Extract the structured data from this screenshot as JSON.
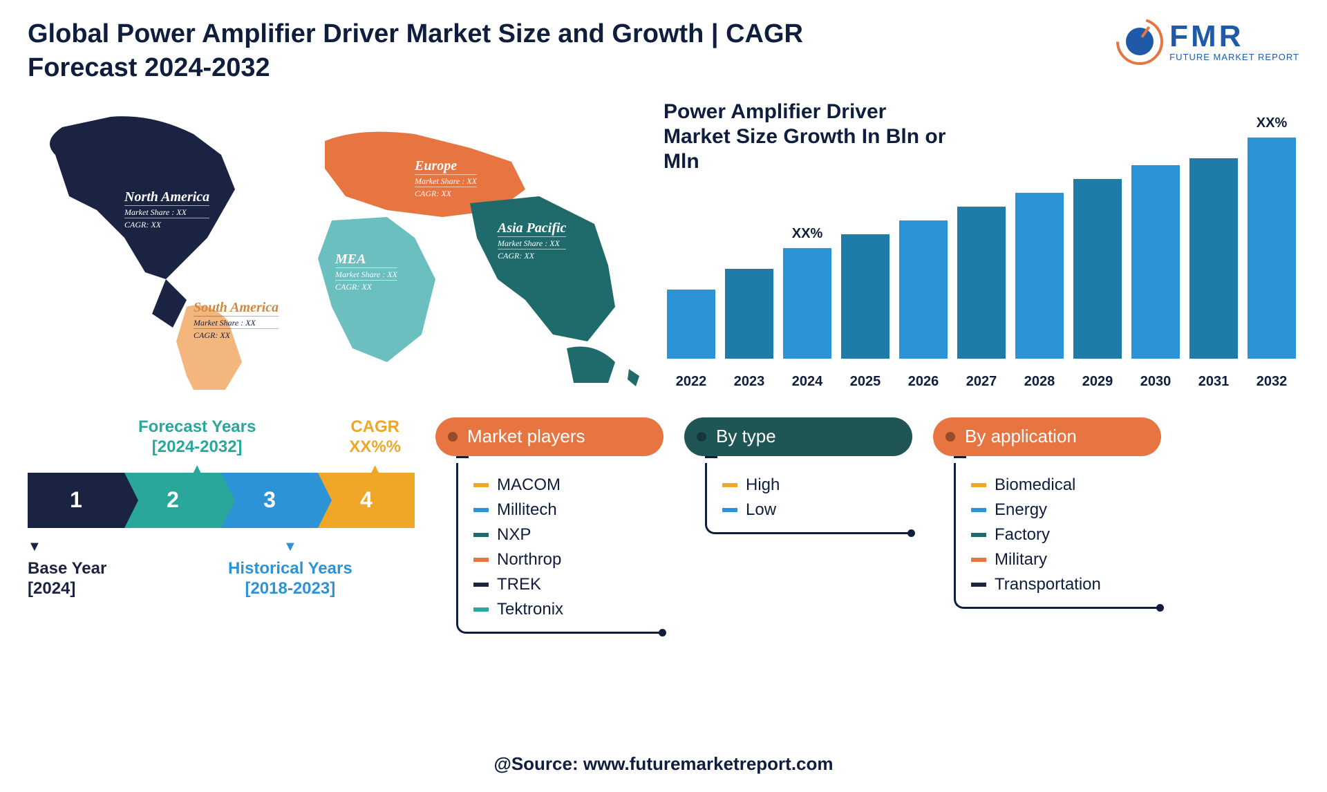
{
  "header": {
    "title": "Global Power Amplifier Driver Market Size and Growth | CAGR Forecast 2024-2032",
    "logo_text": "FMR",
    "logo_subtext": "FUTURE MARKET REPORT"
  },
  "map": {
    "regions": [
      {
        "name": "North America",
        "share": "Market Share : XX",
        "cagr": "CAGR: XX",
        "color": "#1a2442",
        "text": "light"
      },
      {
        "name": "South America",
        "share": "Market Share : XX",
        "cagr": "CAGR: XX",
        "color": "#f3b77e",
        "text": "dark"
      },
      {
        "name": "Europe",
        "share": "Market Share : XX",
        "cagr": "CAGR: XX",
        "color": "#e67541",
        "text": "light"
      },
      {
        "name": "MEA",
        "share": "Market Share : XX",
        "cagr": "CAGR: XX",
        "color": "#6bbfbf",
        "text": "light"
      },
      {
        "name": "Asia Pacific",
        "share": "Market Share : XX",
        "cagr": "CAGR: XX",
        "color": "#1f6b6b",
        "text": "light"
      }
    ]
  },
  "chart": {
    "title": "Power Amplifier Driver Market Size Growth In Bln or Mln",
    "bar_color_primary": "#2c93d6",
    "bar_color_secondary": "#1f7ba8",
    "years": [
      "2022",
      "2023",
      "2024",
      "2025",
      "2026",
      "2027",
      "2028",
      "2029",
      "2030",
      "2031",
      "2032"
    ],
    "heights": [
      100,
      130,
      160,
      180,
      200,
      220,
      240,
      260,
      280,
      290,
      320
    ],
    "annotations": [
      {
        "year_index": 2,
        "text": "XX%"
      },
      {
        "year_index": 10,
        "text": "XX%"
      }
    ]
  },
  "timeline": {
    "segments": [
      {
        "num": "1",
        "bg": "#1a2442"
      },
      {
        "num": "2",
        "bg": "#2aa79b"
      },
      {
        "num": "3",
        "bg": "#2c93d6"
      },
      {
        "num": "4",
        "bg": "#f0a626"
      }
    ],
    "labels": {
      "base": {
        "title": "Base Year",
        "range": "[2024]",
        "color": "#1a2442"
      },
      "forecast": {
        "title": "Forecast Years",
        "range": "[2024-2032]",
        "color": "#2aa79b"
      },
      "historical": {
        "title": "Historical Years",
        "range": "[2018-2023]",
        "color": "#2c93d6"
      },
      "cagr": {
        "title": "CAGR",
        "range": "XX%%",
        "color": "#f0a626"
      }
    }
  },
  "categories": [
    {
      "header": "Market players",
      "header_bg": "#e67541",
      "items": [
        "MACOM",
        "Millitech",
        "NXP",
        "Northrop",
        "TREK",
        "Tektronix"
      ],
      "marker_colors": [
        "#f0a626",
        "#2c93d6",
        "#1f6b6b",
        "#e67541",
        "#1a2442",
        "#2aa79b"
      ]
    },
    {
      "header": "By type",
      "header_bg": "#1f5555",
      "items": [
        "High",
        "Low"
      ],
      "marker_colors": [
        "#f0a626",
        "#2c93d6"
      ]
    },
    {
      "header": "By application",
      "header_bg": "#e67541",
      "items": [
        "Biomedical",
        "Energy",
        "Factory",
        "Military",
        "Transportation"
      ],
      "marker_colors": [
        "#f0a626",
        "#2c93d6",
        "#1f6b6b",
        "#e67541",
        "#1a2442"
      ]
    }
  ],
  "source": "@Source: www.futuremarketreport.com"
}
